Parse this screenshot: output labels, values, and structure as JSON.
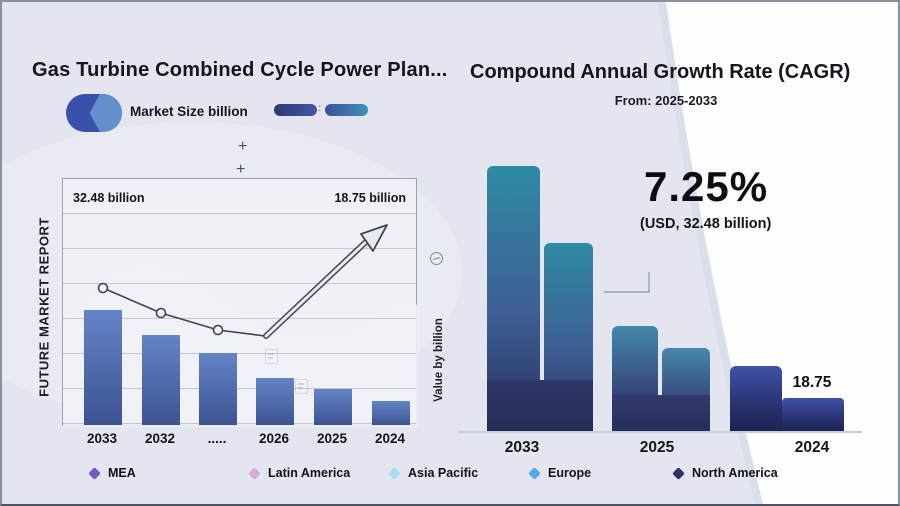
{
  "titles": {
    "left": "Gas Turbine Combined Cycle Power Plan...",
    "right": "Compound Annual Growth Rate (CAGR)",
    "right_sub": "From: 2025-2033"
  },
  "market_size": {
    "label": "Market Size billion"
  },
  "pills": {
    "separator": ":"
  },
  "decor": {
    "plus": "+"
  },
  "stat": {
    "value": "7.25%",
    "detail": "(USD, 32.48 billion)"
  },
  "left_chart": {
    "side_label": "FUTURE MARKET REPORT",
    "annotation_left": "32.48 billion",
    "annotation_right": "18.75 billion"
  },
  "right_chart": {
    "axis_label": "Value by billion",
    "value_label": "18.75"
  },
  "legend": {
    "items": [
      {
        "label": "MEA",
        "color": "#7e57c5"
      },
      {
        "label": "Latin America",
        "color": "#d9a9dc"
      },
      {
        "label": "Asia Pacific",
        "color": "#aedcf0"
      },
      {
        "label": "Europe",
        "color": "#55a9e8"
      },
      {
        "label": "North America",
        "color": "#2c3468"
      }
    ]
  },
  "colors": {
    "background": "#e4e6ef",
    "left_bar_top": "#6484c6",
    "left_bar_bottom": "#3d5391",
    "right_bar_teal": "#2f8ba3",
    "right_bar_navy": "#272f5c",
    "right_bar_royal": "#4053a6",
    "right_bar_dark": "#1b2250"
  },
  "chart_data": [
    {
      "type": "bar",
      "title": "Market Size billion",
      "categories": [
        "2033",
        "2032",
        ".....",
        "2026",
        "2025",
        "2024"
      ],
      "values_rel": [
        100,
        78,
        63,
        41,
        31,
        21
      ],
      "values_billion_est": [
        32.48,
        29.8,
        27.1,
        23.6,
        21.4,
        18.75
      ],
      "annotations": [
        "32.48 billion (top-left)",
        "18.75 billion (top-right)"
      ],
      "trend": "marker line declines over 2033-2026 bars, then outlined arrow rises sharply toward the 18.75 billion label",
      "xlabel": "",
      "ylabel": "FUTURE MARKET REPORT",
      "grid": true,
      "legend_position": "none"
    },
    {
      "type": "bar",
      "title": "Compound Annual Growth Rate (CAGR) From: 2025-2033",
      "categories": [
        "2033",
        "2025",
        "2024"
      ],
      "series": [
        {
          "name": "pair-back",
          "values_rel": [
            100,
            40,
            25
          ]
        },
        {
          "name": "pair-front",
          "values_rel": [
            71,
            32,
            13
          ]
        }
      ],
      "annotations": [
        "7.25%",
        "(USD, 32.48 billion)",
        "18.75 on 2024 front bar"
      ],
      "xlabel": "",
      "ylabel": "Value by billion",
      "grid": false,
      "legend_position": "bottom"
    }
  ]
}
